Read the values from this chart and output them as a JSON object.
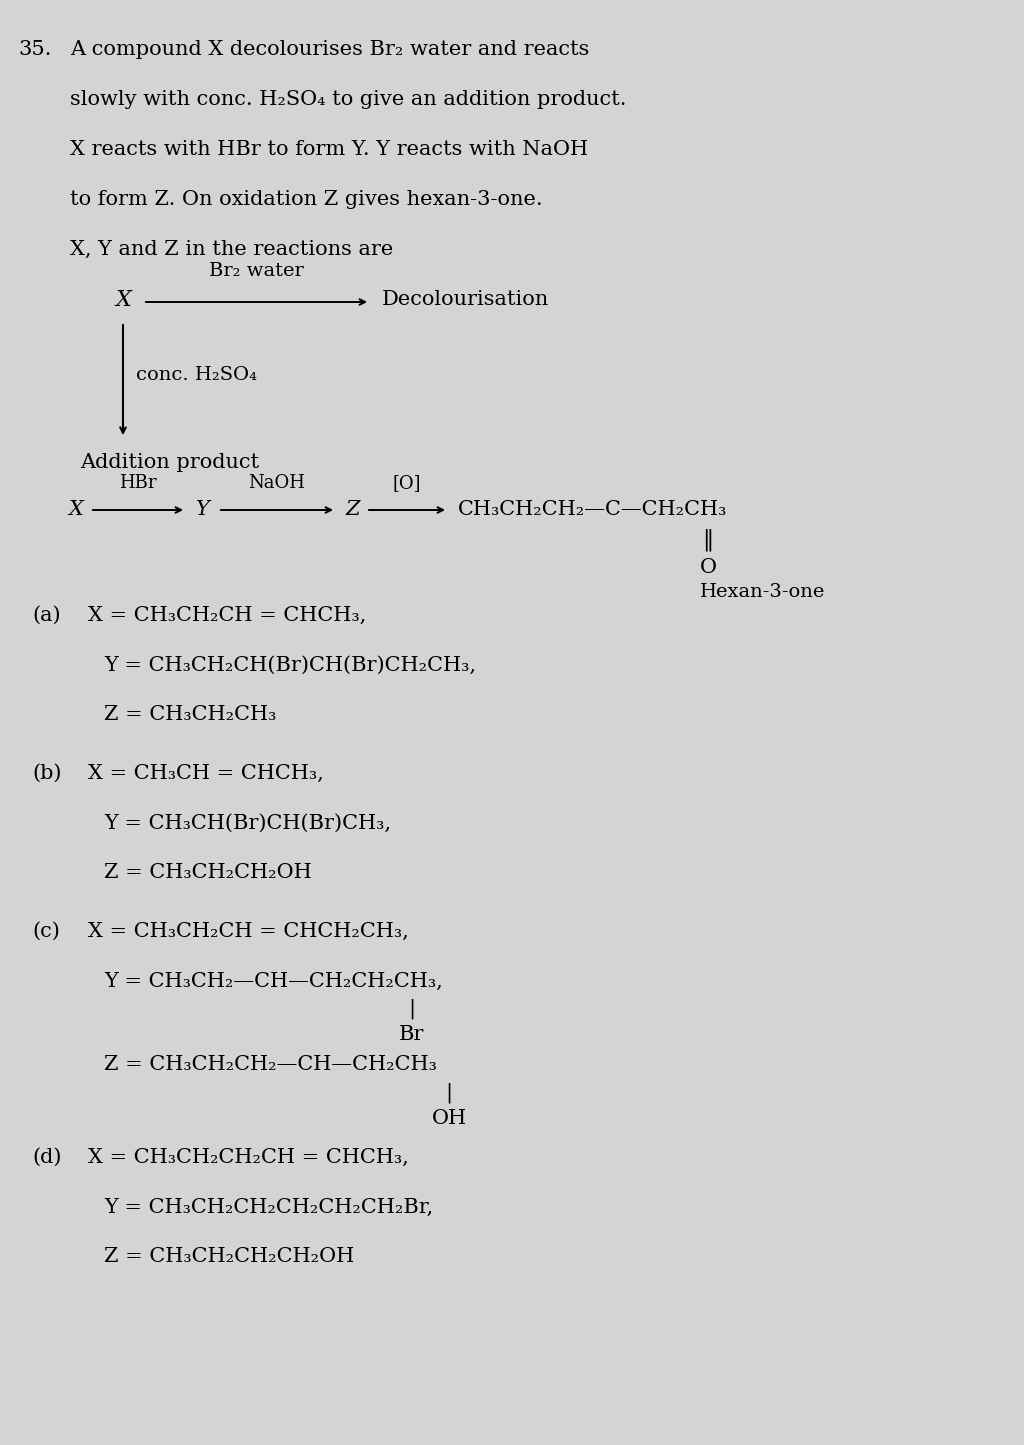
{
  "background_color": "#d4d4d4",
  "text_color": "#000000",
  "title_number": "35.",
  "para_lines": [
    "A compound X decolourises Br₂ water and reacts",
    "slowly with conc. H₂SO₄ to give an addition product.",
    "X reacts with HBr to form Y. Y reacts with NaOH",
    "to form Z. On oxidation Z gives hexan-3-one.",
    "X, Y and Z in the reactions are"
  ],
  "br2_water": "Br₂ water",
  "decolourisation": "Decolourisation",
  "conc_h2so4": "conc. H₂SO₄",
  "addition_product": "Addition product",
  "label_HBr": "HBr",
  "label_NaOH": "NaOH",
  "label_O": "[O]",
  "hexanone_formula": "CH₃CH₂CH₂—C—CH₂CH₃",
  "hexanone_dbl": "‖",
  "hexanone_O": "O",
  "hexanone_label": "Hexan-3-one",
  "opt_a_label": "(a)",
  "opt_a_x": "X = CH₃CH₂CH = CHCH₃,",
  "opt_a_y": "Y = CH₃CH₂CH(Br)CH(Br)CH₂CH₃,",
  "opt_a_z": "Z = CH₃CH₂CH₃",
  "opt_b_label": "(b)",
  "opt_b_x": "X = CH₃CH = CHCH₃,",
  "opt_b_y": "Y = CH₃CH(Br)CH(Br)CH₃,",
  "opt_b_z": "Z = CH₃CH₂CH₂OH",
  "opt_c_label": "(c)",
  "opt_c_x": "X = CH₃CH₂CH = CHCH₂CH₃,",
  "opt_c_y": "Y = CH₃CH₂—CH—CH₂CH₂CH₃,",
  "opt_c_y_sub": "Br",
  "opt_c_z": "Z = CH₃CH₂CH₂—CH—CH₂CH₃",
  "opt_c_z_sub": "OH",
  "opt_d_label": "(d)",
  "opt_d_x": "X = CH₃CH₂CH₂CH = CHCH₃,",
  "opt_d_y": "Y = CH₃CH₂CH₂CH₂CH₂CH₂Br,",
  "opt_d_z": "Z = CH₃CH₂CH₂CH₂OH",
  "fs": 15
}
